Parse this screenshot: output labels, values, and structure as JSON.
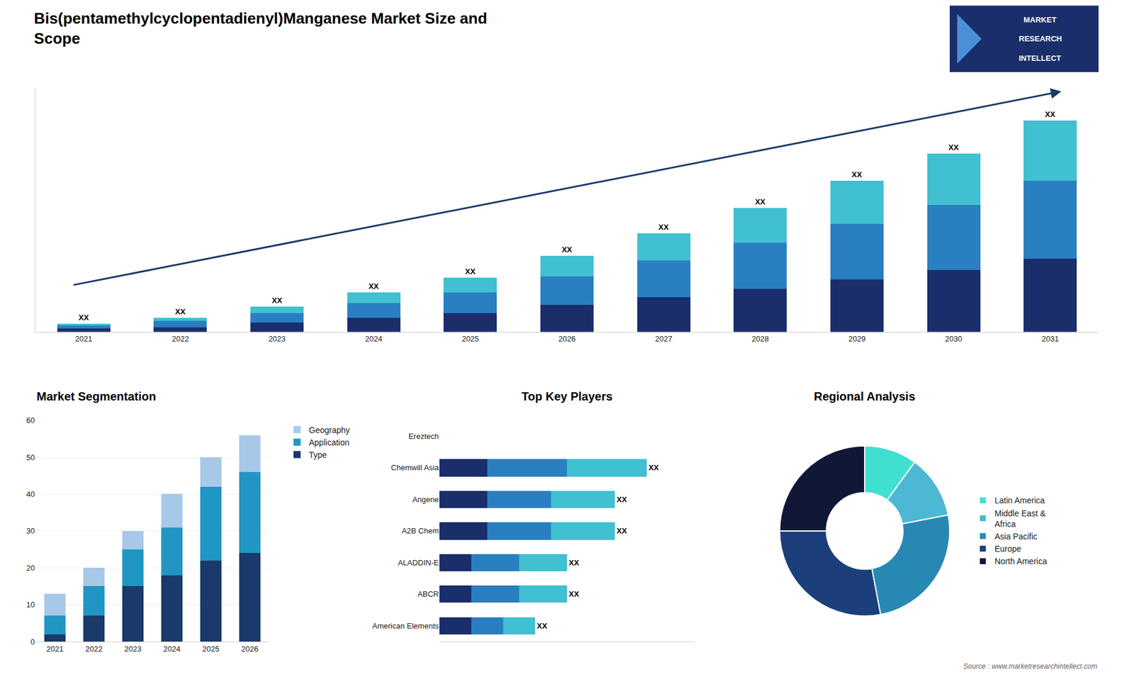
{
  "title": "Bis(pentamethylcyclopentadienyl)Manganese Market Size and\nScope",
  "logo": [
    "MARKET",
    "RESEARCH",
    "INTELLECT"
  ],
  "source": "Source : www.marketresearchintellect.com",
  "chart_data": [
    {
      "type": "bar",
      "stacked": true,
      "categories": [
        "2021",
        "2022",
        "2023",
        "2024",
        "2025",
        "2026",
        "2027",
        "2028",
        "2029",
        "2030",
        "2031"
      ],
      "series": [
        {
          "color": "#1a2e6b",
          "values": [
            2,
            3,
            6,
            9,
            12,
            17,
            22,
            27,
            33,
            39,
            46
          ]
        },
        {
          "color": "#2a7fc1",
          "values": [
            2,
            4,
            6,
            9,
            13,
            18,
            23,
            29,
            35,
            41,
            49
          ]
        },
        {
          "color": "#40c0d0",
          "values": [
            1,
            2,
            4,
            7,
            9,
            13,
            17,
            22,
            27,
            32,
            38
          ],
          "value_labels": [
            "XX",
            "XX",
            "XX",
            "XX",
            "XX",
            "XX",
            "XX",
            "XX",
            "XX",
            "XX",
            "XX"
          ]
        }
      ],
      "ylim": [
        0,
        153
      ],
      "grid": false,
      "tick_labels": "x"
    },
    {
      "type": "bar",
      "stacked": true,
      "title": "Market Segmentation",
      "categories": [
        "2021",
        "2022",
        "2023",
        "2024",
        "2025",
        "2026"
      ],
      "series": [
        {
          "name": "Type",
          "color": "#1a3a6b",
          "values": [
            2,
            7,
            15,
            18,
            22,
            24
          ]
        },
        {
          "name": "Application",
          "color": "#2196c4",
          "values": [
            5,
            8,
            10,
            13,
            20,
            22
          ]
        },
        {
          "name": "Geography",
          "color": "#a8c8e8",
          "values": [
            6,
            5,
            5,
            9,
            8,
            10
          ]
        }
      ],
      "ylim": [
        0,
        60
      ],
      "yticks": [
        0,
        10,
        20,
        30,
        40,
        50,
        60
      ],
      "grid": true,
      "legend": "right"
    },
    {
      "type": "bar",
      "stacked": true,
      "orientation": "horizontal",
      "title": "Top Key Players",
      "categories": [
        "Ereztech",
        "Chemwill Asia",
        "Angene",
        "A2B Chem",
        "ALADDIN-E",
        "ABCR",
        "American Elements"
      ],
      "series": [
        {
          "color": "#1a2e6b",
          "values": [
            0,
            3,
            3,
            3,
            2,
            2,
            2
          ]
        },
        {
          "color": "#2a7fc1",
          "values": [
            0,
            5,
            4,
            4,
            3,
            3,
            2
          ]
        },
        {
          "color": "#40c0d0",
          "values": [
            0,
            5,
            4,
            4,
            3,
            3,
            2
          ],
          "value_labels": [
            null,
            "XX",
            "XX",
            "XX",
            "XX",
            "XX",
            "XX"
          ]
        }
      ],
      "xlim": [
        0,
        16
      ],
      "grid": false,
      "tick_labels": "y"
    },
    {
      "type": "donut",
      "title": "Regional Analysis",
      "categories": [
        "Latin America",
        "Middle East &\nAfrica",
        "Asia Pacific",
        "Europe",
        "North America"
      ],
      "values": [
        10,
        12,
        25,
        28,
        25
      ],
      "colors": [
        "#40e0d0",
        "#4db8d4",
        "#2888b4",
        "#1a3f7a",
        "#111836"
      ],
      "legend": "right"
    }
  ]
}
